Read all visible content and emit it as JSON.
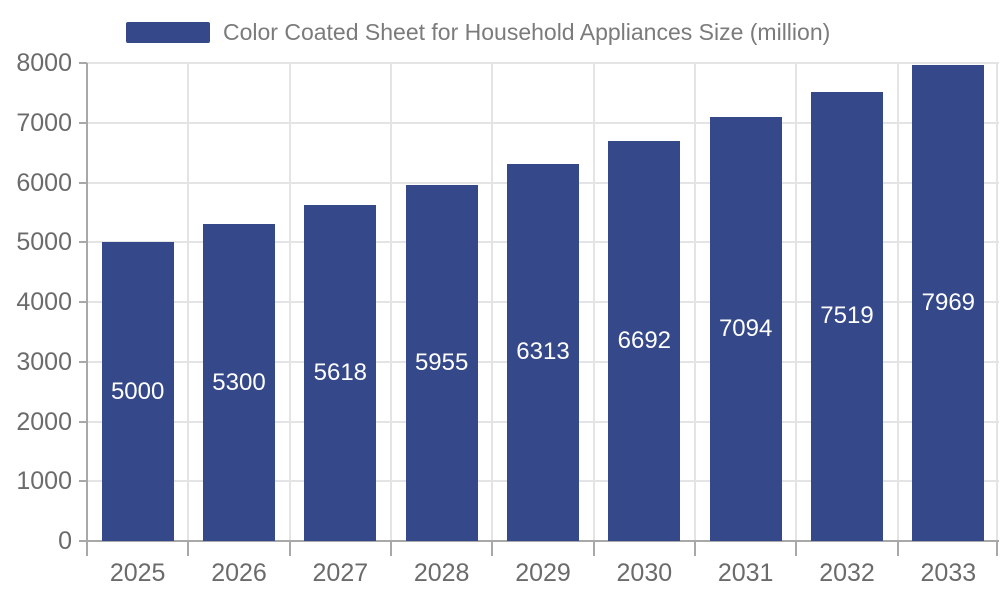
{
  "chart_data": {
    "type": "bar",
    "title": "Color Coated Sheet for Household Appliances Size (million)",
    "legend": [
      "Color Coated Sheet for Household Appliances Size (million)"
    ],
    "legend_position": "top",
    "categories": [
      "2025",
      "2026",
      "2027",
      "2028",
      "2029",
      "2030",
      "2031",
      "2032",
      "2033"
    ],
    "values": [
      5000,
      5300,
      5618,
      5955,
      6313,
      6692,
      7094,
      7519,
      7969
    ],
    "xlabel": "",
    "ylabel": "",
    "ylim": [
      0,
      8000
    ],
    "yticks": [
      0,
      1000,
      2000,
      3000,
      4000,
      5000,
      6000,
      7000,
      8000
    ],
    "grid": true,
    "bar_labels_visible": true,
    "colors": {
      "bar": "#35498a",
      "bar_label": "#ffffff",
      "grid_line": "#e4e4e4",
      "axis_line": "#a8a8a8",
      "tick_label": "#6b6b6b",
      "legend_text": "#7b7b7b",
      "background": "#ffffff"
    }
  }
}
